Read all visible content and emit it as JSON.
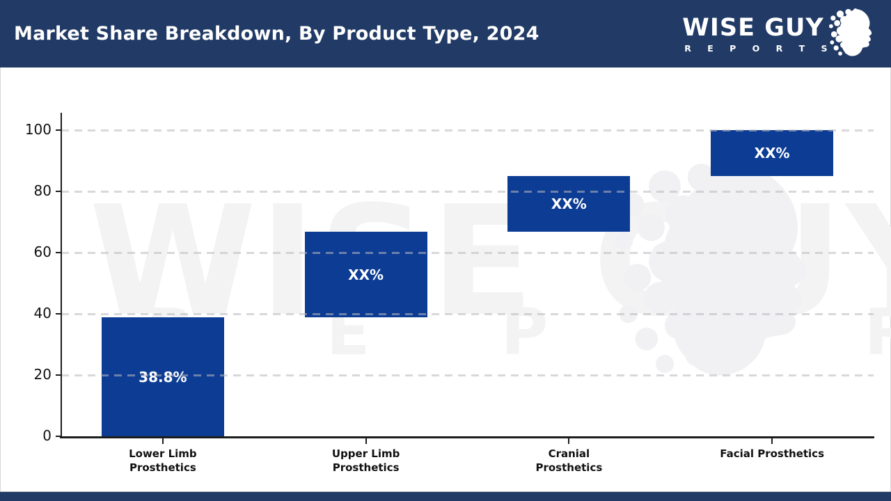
{
  "header": {
    "title": "Market Share Breakdown, By Product Type, 2024",
    "bg_color": "#213a66",
    "logo": {
      "line1": "WISE GUY",
      "line2": "R E P O R T S"
    }
  },
  "watermark": {
    "line1": "WISE GUY",
    "line2": "R E P O R T S"
  },
  "chart_data": {
    "type": "bar",
    "subtype": "floating-waterfall-bars",
    "title": "Market Share Breakdown, By Product Type, 2024",
    "categories": [
      [
        "Lower Limb",
        "Prosthetics"
      ],
      [
        "Upper Limb",
        "Prosthetics"
      ],
      [
        "Cranial",
        "Prosthetics"
      ],
      [
        "Facial Prosthetics"
      ]
    ],
    "series": [
      {
        "name": "Lower Limb Prosthetics",
        "start": 0,
        "end": 38.8,
        "value": 38.8,
        "label": "38.8%"
      },
      {
        "name": "Upper Limb Prosthetics",
        "start": 38.8,
        "end": 66.8,
        "value": 28.0,
        "label": "XX%"
      },
      {
        "name": "Cranial Prosthetics",
        "start": 66.8,
        "end": 85.0,
        "value": 18.2,
        "label": "XX%"
      },
      {
        "name": "Facial Prosthetics",
        "start": 85.0,
        "end": 100.0,
        "value": 15.0,
        "label": "XX%"
      }
    ],
    "xlabel": "",
    "ylabel": "",
    "ylim": [
      0,
      100
    ],
    "yticks": [
      0,
      20,
      40,
      60,
      80,
      100
    ],
    "grid": "horizontal-dashed-over-bars",
    "legend": "none",
    "bar_color": "#0d3c94",
    "bar_label_color": "#ffffff"
  }
}
